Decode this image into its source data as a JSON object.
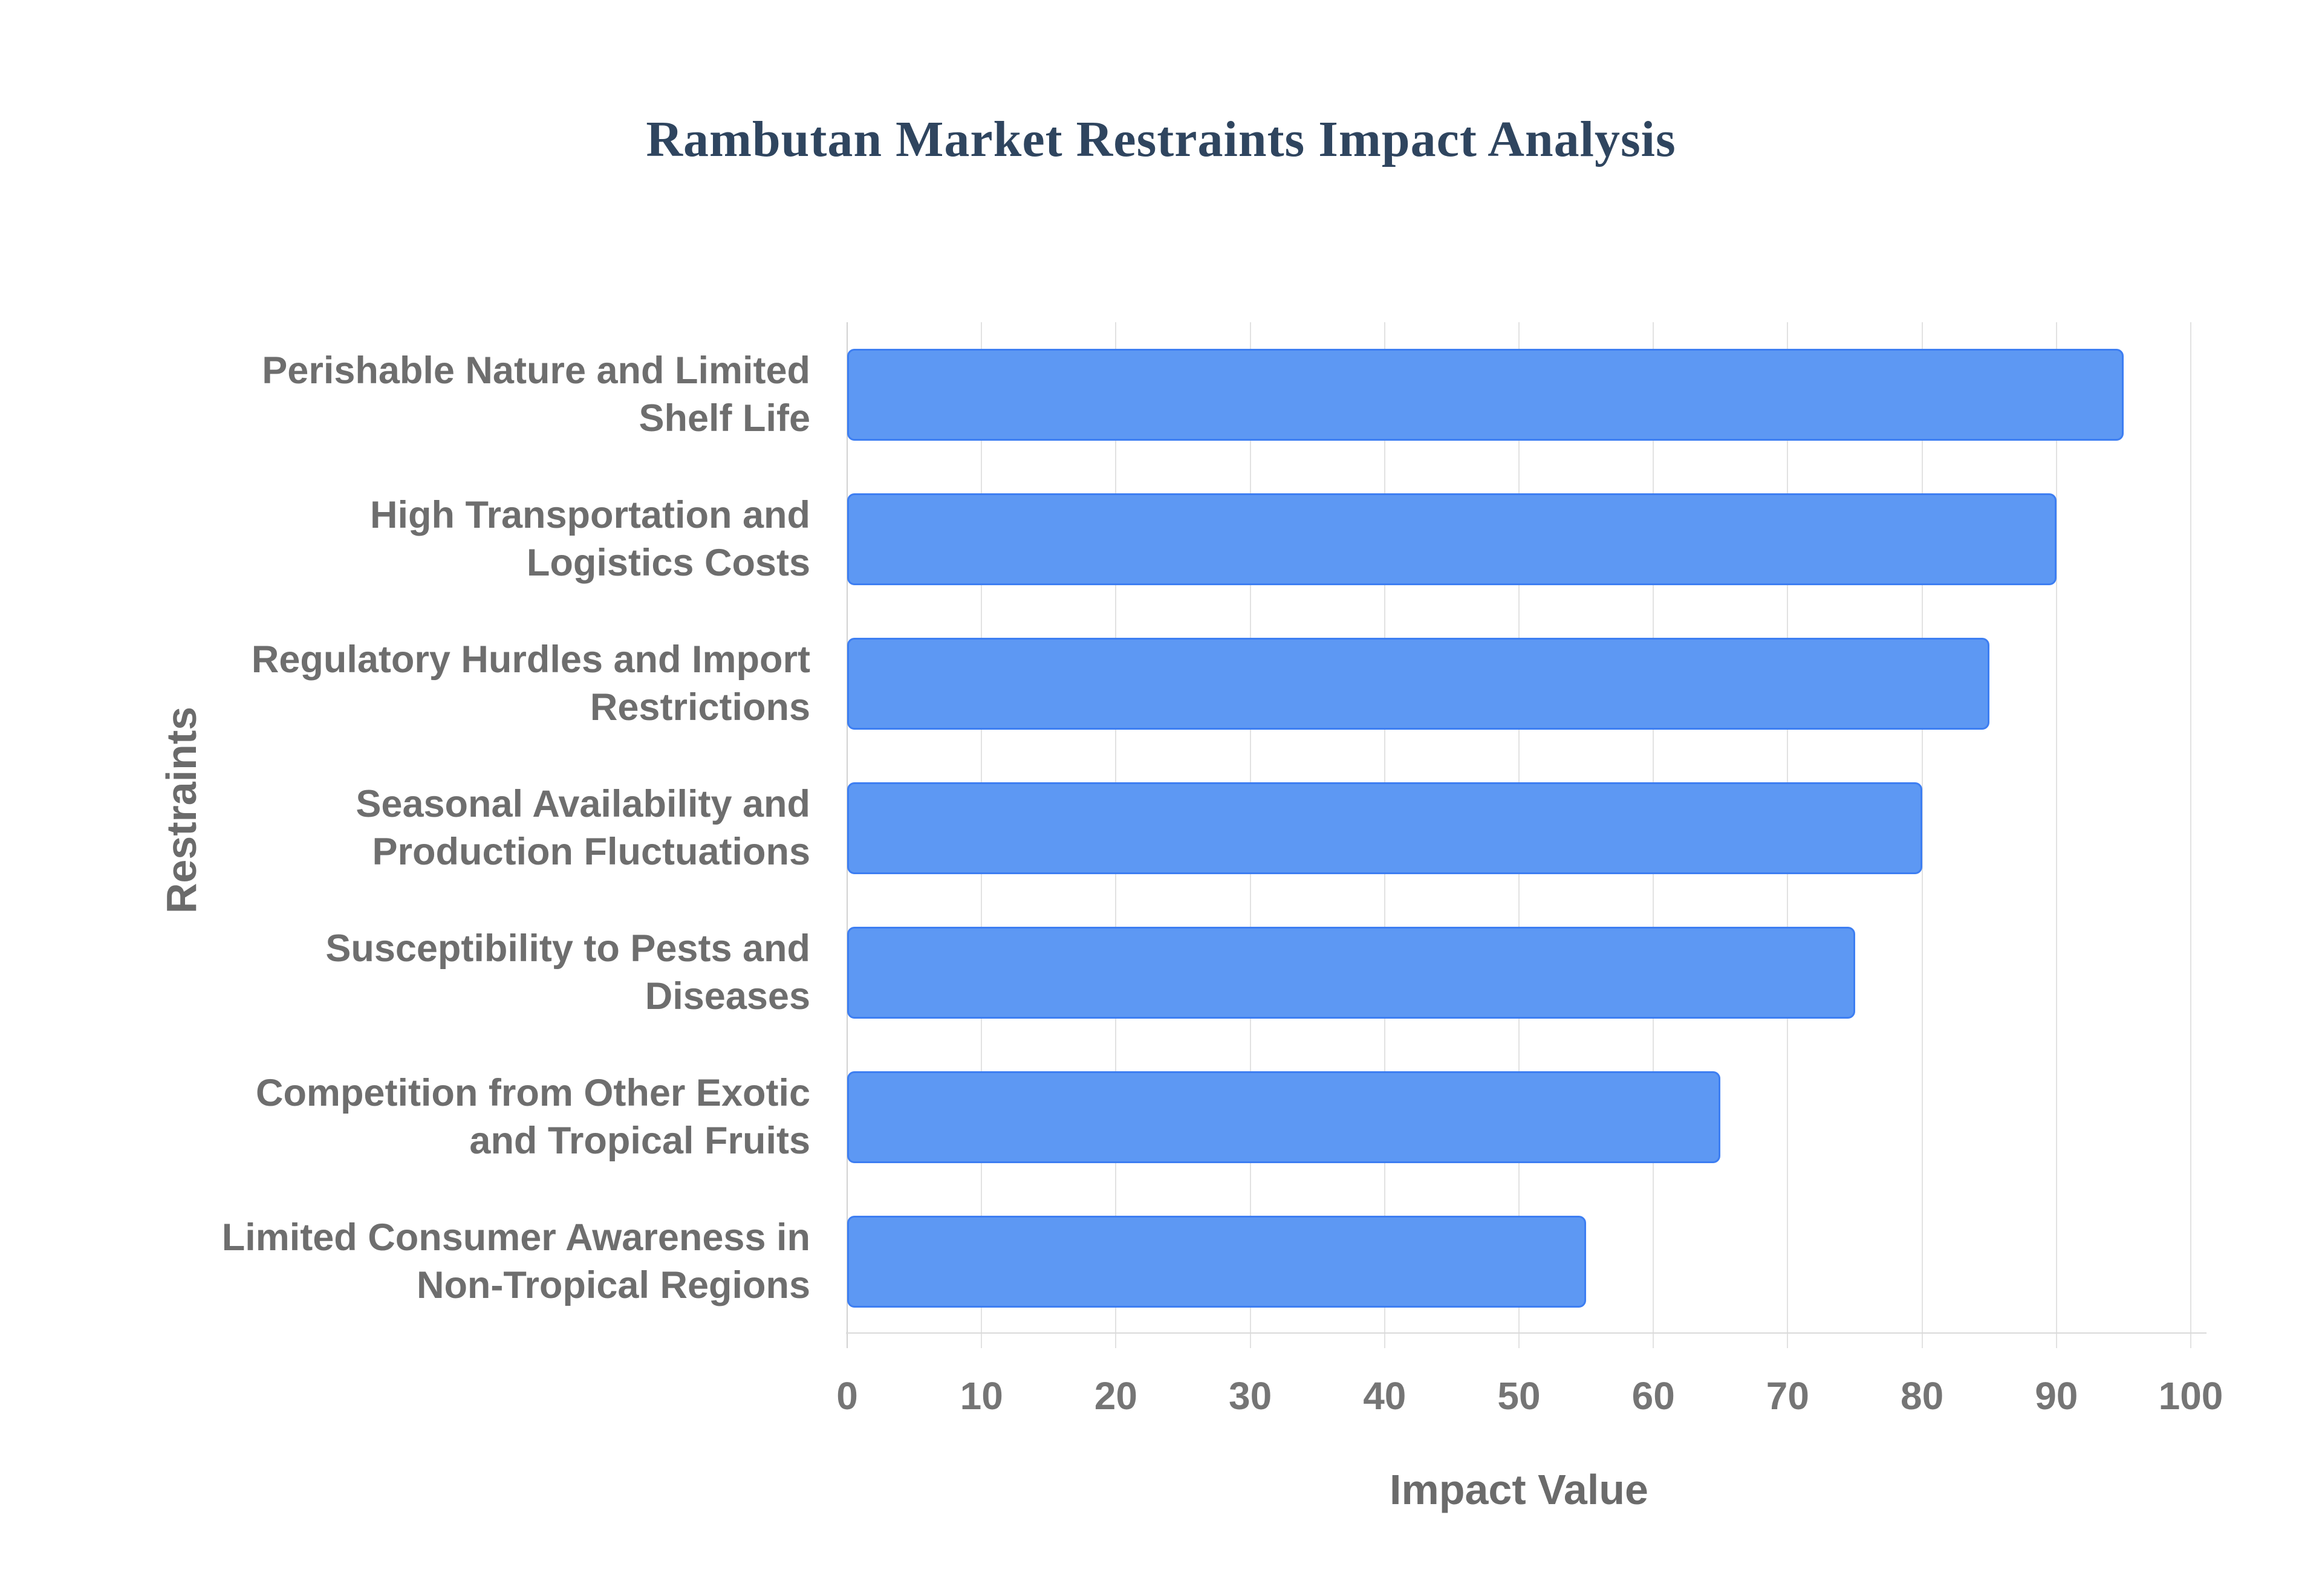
{
  "chart_data": {
    "type": "bar",
    "orientation": "horizontal",
    "title": "Rambutan Market Restraints Impact Analysis",
    "xlabel": "Impact Value",
    "ylabel": "Restraints",
    "categories": [
      "Perishable Nature and Limited Shelf Life",
      "High Transportation and Logistics Costs",
      "Regulatory Hurdles and Import Restrictions",
      "Seasonal Availability and Production Fluctuations",
      "Susceptibility to Pests and Diseases",
      "Competition from Other Exotic and Tropical Fruits",
      "Limited Consumer Awareness in Non-Tropical Regions"
    ],
    "category_lines": [
      [
        "Perishable Nature and Limited",
        "Shelf Life"
      ],
      [
        "High Transportation and",
        "Logistics Costs"
      ],
      [
        "Regulatory Hurdles and Import",
        "Restrictions"
      ],
      [
        "Seasonal Availability and",
        "Production Fluctuations"
      ],
      [
        "Susceptibility to Pests and",
        "Diseases"
      ],
      [
        "Competition from Other Exotic",
        "and Tropical Fruits"
      ],
      [
        "Limited Consumer Awareness in",
        "Non-Tropical Regions"
      ]
    ],
    "values": [
      95,
      90,
      85,
      80,
      75,
      65,
      55
    ],
    "xlim": [
      0,
      100
    ],
    "xticks": [
      0,
      10,
      20,
      30,
      40,
      50,
      60,
      70,
      80,
      90,
      100
    ],
    "grid": true,
    "legend": "none",
    "colors": {
      "bar_fill": "#5d98f3",
      "bar_border": "#3d7ef2",
      "title_text": "#2f455f",
      "label_text": "#6e6e6e",
      "tick_text": "#757575",
      "gridline": "#e2e2e2"
    }
  }
}
